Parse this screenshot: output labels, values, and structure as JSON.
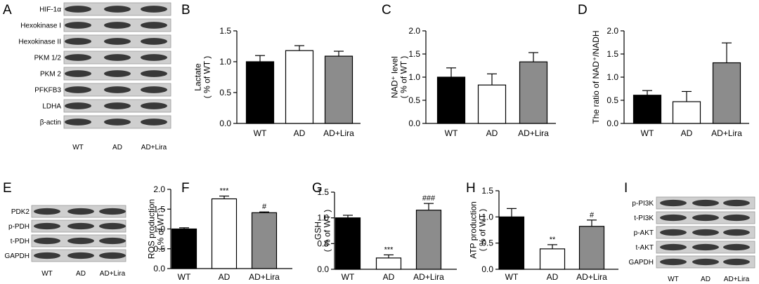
{
  "colors": {
    "WT": "#000000",
    "AD": "#ffffff",
    "AD+Lira": "#8c8c8c",
    "membrane": "#cfcfcf",
    "band": "#1e1e1e"
  },
  "blots": [
    {
      "id": "blot-A",
      "letter": "A",
      "lanes": [
        "WT",
        "AD",
        "AD+Lira"
      ],
      "proteins": [
        "HIF-1α",
        "Hexokinase I",
        "Hexokinase II",
        "PKM 1/2",
        "PKM 2",
        "PFKFB3",
        "LDHA",
        "β-actin"
      ]
    },
    {
      "id": "blot-E",
      "letter": "E",
      "lanes": [
        "WT",
        "AD",
        "AD+Lira"
      ],
      "proteins": [
        "PDK2",
        "p-PDH",
        "t-PDH",
        "GAPDH"
      ]
    },
    {
      "id": "blot-I",
      "letter": "I",
      "lanes": [
        "WT",
        "AD",
        "AD+Lira"
      ],
      "proteins": [
        "p-PI3K",
        "t-PI3K",
        "p-AKT",
        "t-AKT",
        "GAPDH"
      ]
    }
  ],
  "chart_data": [
    {
      "id": "chart-B",
      "letter": "B",
      "type": "bar",
      "categories": [
        "WT",
        "AD",
        "AD+Lira"
      ],
      "values": [
        1.0,
        1.18,
        1.09
      ],
      "errors": [
        0.1,
        0.08,
        0.08
      ],
      "significance": [
        "",
        "",
        ""
      ],
      "ylabel_lines": [
        "Lactate",
        "( % of WT )"
      ],
      "ylim": [
        0,
        1.5
      ],
      "yticks": [
        0.0,
        0.5,
        1.0,
        1.5
      ]
    },
    {
      "id": "chart-C",
      "letter": "C",
      "type": "bar",
      "categories": [
        "WT",
        "AD",
        "AD+Lira"
      ],
      "values": [
        1.0,
        0.83,
        1.33
      ],
      "errors": [
        0.2,
        0.24,
        0.2
      ],
      "significance": [
        "",
        "",
        ""
      ],
      "ylabel_lines": [
        "NAD⁺ level",
        "( % of WT )"
      ],
      "ylim": [
        0,
        2.0
      ],
      "yticks": [
        0.0,
        0.5,
        1.0,
        1.5,
        2.0
      ]
    },
    {
      "id": "chart-D",
      "letter": "D",
      "type": "bar",
      "categories": [
        "WT",
        "AD",
        "AD+Lira"
      ],
      "values": [
        0.61,
        0.47,
        1.31
      ],
      "errors": [
        0.1,
        0.22,
        0.43
      ],
      "significance": [
        "",
        "",
        ""
      ],
      "ylabel_lines": [
        "The ratio of NAD⁺/NADH"
      ],
      "ylim": [
        0,
        2.0
      ],
      "yticks": [
        0.0,
        0.5,
        1.0,
        1.5,
        2.0
      ]
    },
    {
      "id": "chart-F",
      "letter": "F",
      "type": "bar",
      "categories": [
        "WT",
        "AD",
        "AD+Lira"
      ],
      "values": [
        1.0,
        1.76,
        1.41
      ],
      "errors": [
        0.03,
        0.07,
        0.02
      ],
      "significance": [
        "",
        "***",
        "#"
      ],
      "ylabel_lines": [
        "ROS production",
        "( % of WT )"
      ],
      "ylim": [
        0,
        2.0
      ],
      "yticks": [
        0.0,
        0.5,
        1.0,
        1.5,
        2.0
      ]
    },
    {
      "id": "chart-G",
      "letter": "G",
      "type": "bar",
      "categories": [
        "WT",
        "AD",
        "AD+Lira"
      ],
      "values": [
        1.0,
        0.22,
        1.15
      ],
      "errors": [
        0.05,
        0.06,
        0.13
      ],
      "significance": [
        "",
        "***",
        "###"
      ],
      "ylabel_lines": [
        "GSH",
        "( % of WT )"
      ],
      "ylim": [
        0,
        1.5
      ],
      "yticks": [
        0.0,
        0.5,
        1.0,
        1.5
      ]
    },
    {
      "id": "chart-H",
      "letter": "H",
      "type": "bar",
      "categories": [
        "WT",
        "AD",
        "AD+Lira"
      ],
      "values": [
        1.0,
        0.39,
        0.82
      ],
      "errors": [
        0.16,
        0.08,
        0.12
      ],
      "significance": [
        "",
        "**",
        "#"
      ],
      "ylabel_lines": [
        "ATP production",
        "( % of WT )"
      ],
      "ylim": [
        0,
        1.5
      ],
      "yticks": [
        0.0,
        0.5,
        1.0,
        1.5
      ]
    }
  ]
}
